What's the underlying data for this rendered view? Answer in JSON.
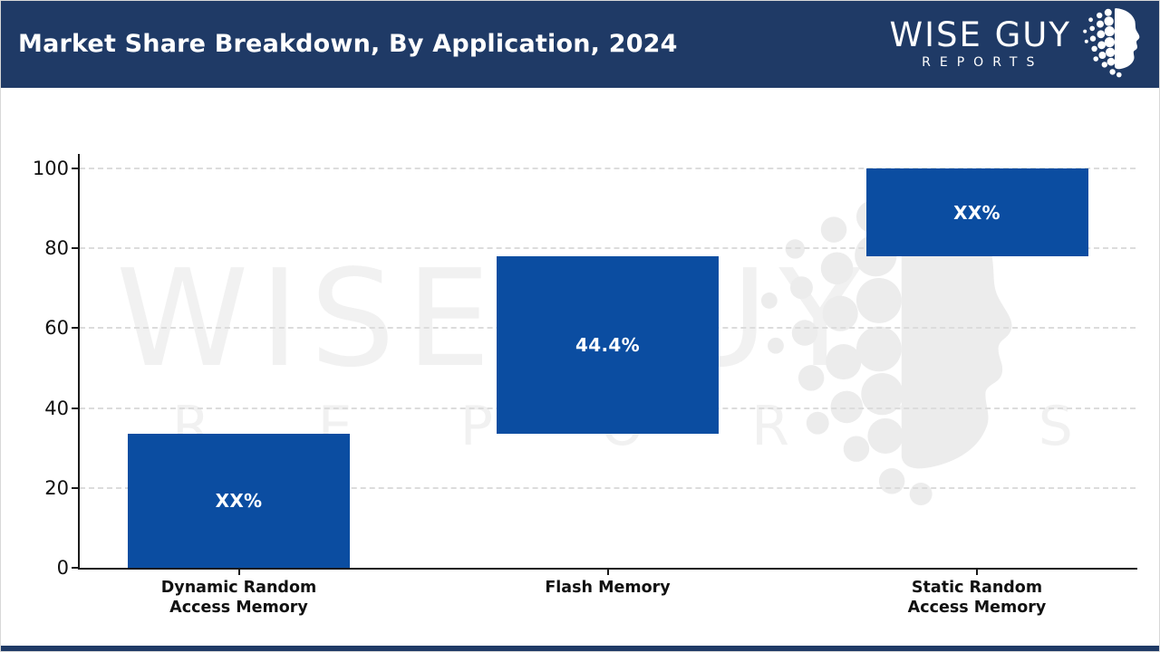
{
  "header": {
    "title": "Market Share Breakdown, By Application, 2024",
    "logo": {
      "name": "WISE GUY",
      "sub": "REPORTS"
    }
  },
  "watermark": {
    "name": "WISE GUY",
    "sub": "R E P O R T S"
  },
  "chart_data": {
    "type": "bar",
    "subtype": "floating_segment_bars",
    "title": "Market Share Breakdown, By Application, 2024",
    "xlabel": "",
    "ylabel": "",
    "ylim": [
      0,
      100
    ],
    "yticks": [
      0,
      20,
      40,
      60,
      80,
      100
    ],
    "grid": {
      "axis": "y",
      "style": "dashed"
    },
    "legend": "none",
    "bar_color": "#0B4DA1",
    "bar_label_color": "#FFFFFF",
    "categories": [
      {
        "label": "Dynamic Random Access Memory",
        "lines": [
          "Dynamic Random",
          "Access Memory"
        ]
      },
      {
        "label": "Flash Memory",
        "lines": [
          "Flash Memory"
        ]
      },
      {
        "label": "Static Random Access Memory",
        "lines": [
          "Static Random",
          "Access Memory"
        ]
      }
    ],
    "segments": [
      {
        "category": "Dynamic Random Access Memory",
        "start": 0,
        "end": 33.5,
        "label": "XX%"
      },
      {
        "category": "Flash Memory",
        "start": 33.5,
        "end": 77.9,
        "label": "44.4%"
      },
      {
        "category": "Static Random Access Memory",
        "start": 77.9,
        "end": 100,
        "label": "XX%"
      }
    ]
  },
  "colors": {
    "header_bg": "#1F3A66",
    "footer_bg": "#1F3A66",
    "axis": "#1A1A1A",
    "grid": "#DCDCDC",
    "watermark": "#F0F0F0"
  }
}
